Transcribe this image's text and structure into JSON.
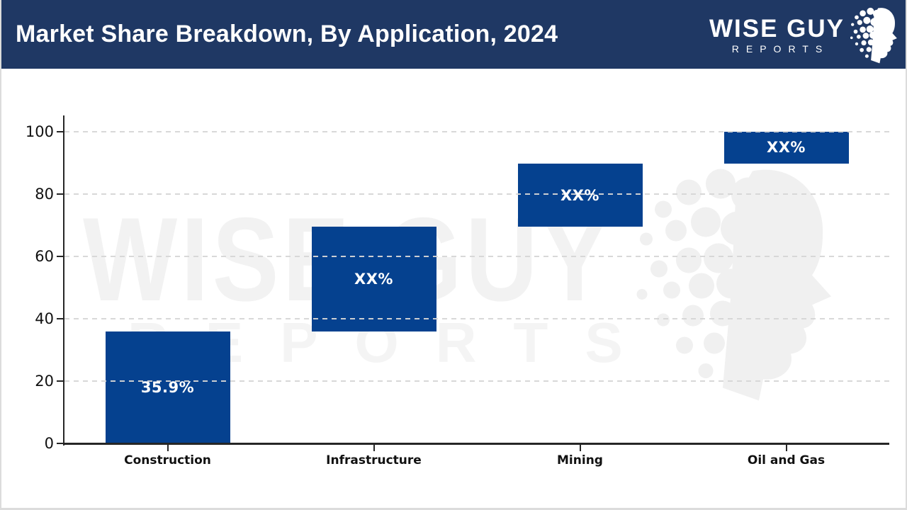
{
  "header": {
    "title": "Market Share Breakdown, By Application, 2024",
    "logo_line1": "WISE GUY",
    "logo_line2": "REPORTS"
  },
  "watermark": {
    "line1": "WISE GUY",
    "line2": "REPORTS"
  },
  "colors": {
    "header_bg": "#1f3864",
    "bar": "#05418f",
    "axis": "#262626",
    "grid": "#d9d9d9",
    "bar_label_text": "#ffffff",
    "title_text": "#ffffff"
  },
  "chart_data": {
    "type": "bar",
    "subtype": "waterfall",
    "title": "Market Share Breakdown, By Application, 2024",
    "categories": [
      "Construction",
      "Infrastructure",
      "Mining",
      "Oil and Gas"
    ],
    "segments": [
      {
        "category": "Construction",
        "start": 0,
        "end": 35.9,
        "label": "35.9%"
      },
      {
        "category": "Infrastructure",
        "start": 35.9,
        "end": 69.5,
        "label": "XX%"
      },
      {
        "category": "Mining",
        "start": 69.5,
        "end": 89.8,
        "label": "XX%"
      },
      {
        "category": "Oil and Gas",
        "start": 89.8,
        "end": 100,
        "label": "XX%"
      }
    ],
    "y_ticks": [
      0,
      20,
      40,
      60,
      80,
      100
    ],
    "ylim": [
      0,
      104
    ],
    "xlabel": "",
    "ylabel": "",
    "grid": "dashed-horizontal-over-bars",
    "legend": "none",
    "bar_color": "#05418f"
  }
}
